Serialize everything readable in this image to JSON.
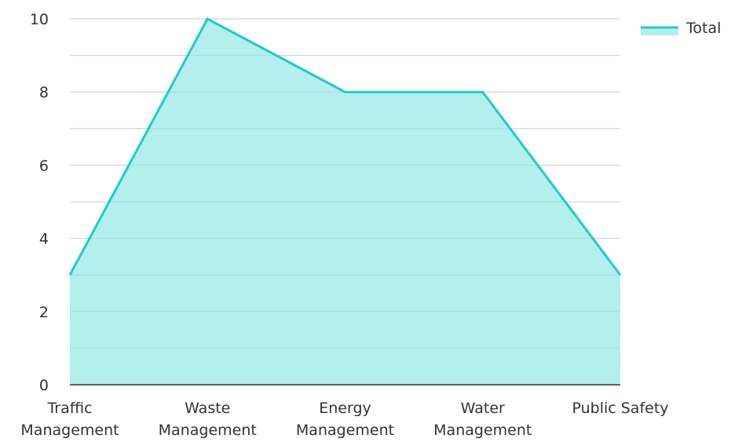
{
  "chart_data": {
    "type": "area",
    "title": "",
    "xlabel": "",
    "ylabel": "",
    "categories": [
      [
        "Traffic",
        "Management"
      ],
      [
        "Waste",
        "Management"
      ],
      [
        "Energy",
        "Management"
      ],
      [
        "Water",
        "Management"
      ],
      [
        "Public Safety"
      ]
    ],
    "series": [
      {
        "name": "Total",
        "values": [
          3,
          10,
          8,
          8,
          3
        ]
      }
    ],
    "ylim": [
      0,
      10
    ],
    "yticks": [
      0,
      2,
      4,
      6,
      8,
      10
    ],
    "grid": true,
    "legend_position": "top-right",
    "colors": {
      "line": "#1ecbcb",
      "fill": "#b2efed",
      "grid": "#d9d9d9",
      "axis": "#333333"
    }
  }
}
